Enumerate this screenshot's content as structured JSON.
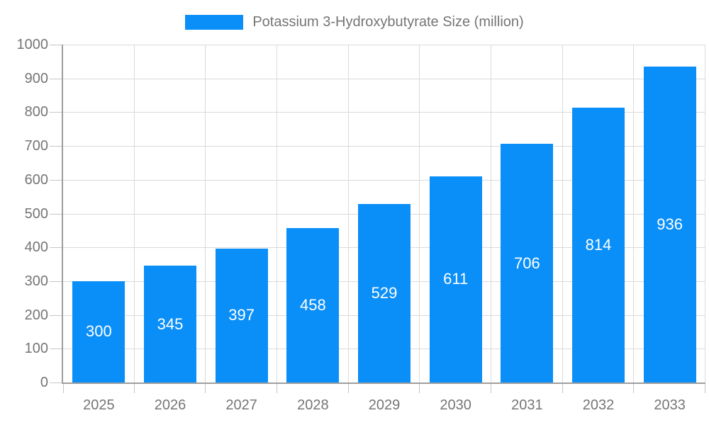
{
  "legend": {
    "label": "Potassium 3-Hydroxybutyrate Size (million)"
  },
  "colors": {
    "bar": "#0a8ff9",
    "axis_text": "#757575",
    "value_label_text": "#ffffff",
    "gridline": "#dadada",
    "axis_line": "#9e9e9e",
    "tick": "#c6c6c6"
  },
  "chart_data": {
    "type": "bar",
    "title": "Potassium 3-Hydroxybutyrate Size (million)",
    "series_name": "Potassium 3-Hydroxybutyrate Size (million)",
    "categories": [
      "2025",
      "2026",
      "2027",
      "2028",
      "2029",
      "2030",
      "2031",
      "2032",
      "2033"
    ],
    "values": [
      300,
      345,
      397,
      458,
      529,
      611,
      706,
      814,
      936
    ],
    "value_labels_shown": true,
    "xlabel": "",
    "ylabel": "",
    "ylim": [
      0,
      1000
    ],
    "y_ticks": [
      0,
      100,
      200,
      300,
      400,
      500,
      600,
      700,
      800,
      900,
      1000
    ],
    "grid": "on",
    "legend_position": "top-center",
    "bar_color": "#0a8ff9"
  }
}
